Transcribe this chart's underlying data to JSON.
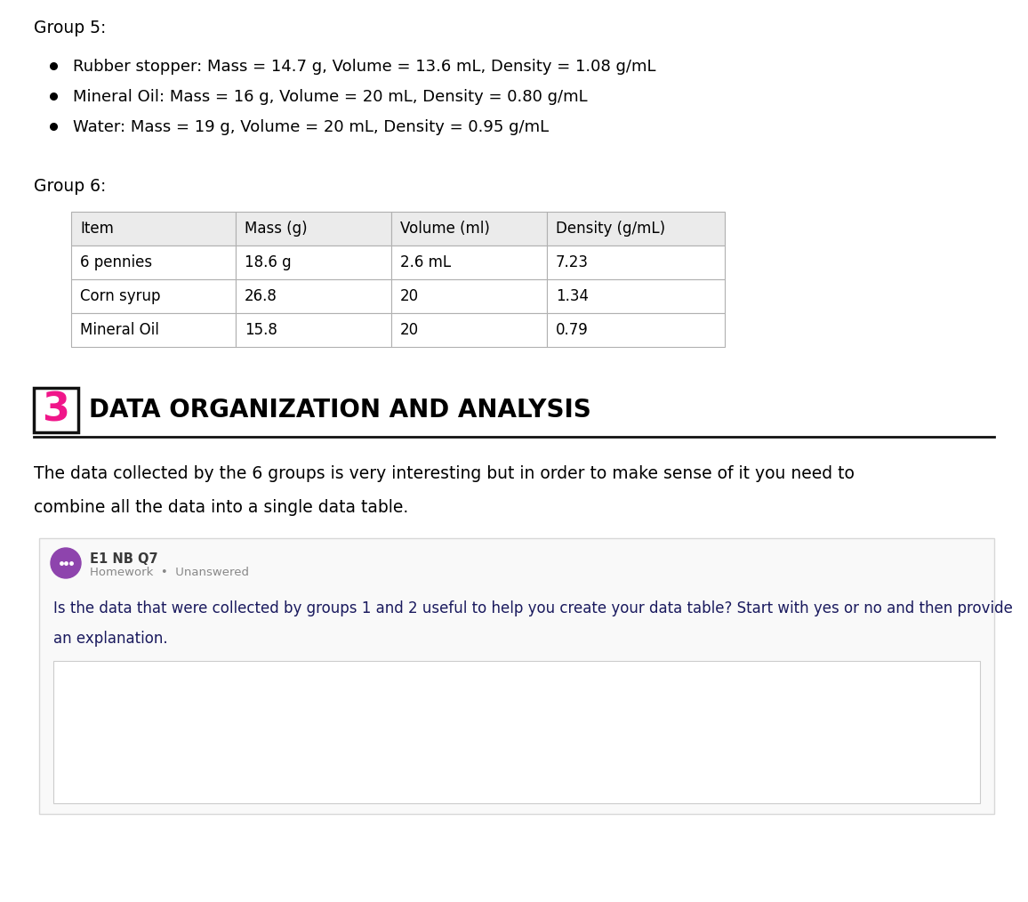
{
  "group5_title": "Group 5:",
  "group5_bullets": [
    "Rubber stopper: Mass = 14.7 g, Volume = 13.6 mL, Density = 1.08 g/mL",
    "Mineral Oil: Mass = 16 g, Volume = 20 mL, Density = 0.80 g/mL",
    "Water: Mass = 19 g, Volume = 20 mL, Density = 0.95 g/mL"
  ],
  "group6_title": "Group 6:",
  "table_headers": [
    "Item",
    "Mass (g)",
    "Volume (ml)",
    "Density (g/mL)"
  ],
  "table_rows": [
    [
      "6 pennies",
      "18.6 g",
      "2.6 mL",
      "7.23"
    ],
    [
      "Corn syrup",
      "26.8",
      "20",
      "1.34"
    ],
    [
      "Mineral Oil",
      "15.8",
      "20",
      "0.79"
    ]
  ],
  "section_number": "3",
  "section_title": "DATA ORGANIZATION AND ANALYSIS",
  "paragraph_line1": "The data collected by the 6 groups is very interesting but in order to make sense of it you need to",
  "paragraph_line2": "combine all the data into a single data table.",
  "card_label": "E1 NB Q7",
  "card_sub": "Homework  •  Unanswered",
  "card_question_line1": "Is the data that were collected by groups 1 and 2 useful to help you create your data table? Start with yes or no and then provide",
  "card_question_line2": "an explanation.",
  "bg_color": "#ffffff",
  "text_color": "#000000",
  "table_header_bg": "#ebebeb",
  "table_border_color": "#b0b0b0",
  "card_bg": "#f9f9f9",
  "card_border_color": "#d8d8d8",
  "section_num_color": "#f0168a",
  "card_icon_color": "#8e44ad",
  "card_label_color": "#3a3a3a",
  "card_question_color": "#1a1a5e",
  "answer_box_bg": "#ffffff",
  "answer_box_border": "#cccccc",
  "section_line_color": "#111111",
  "section_num_box_border": "#111111"
}
